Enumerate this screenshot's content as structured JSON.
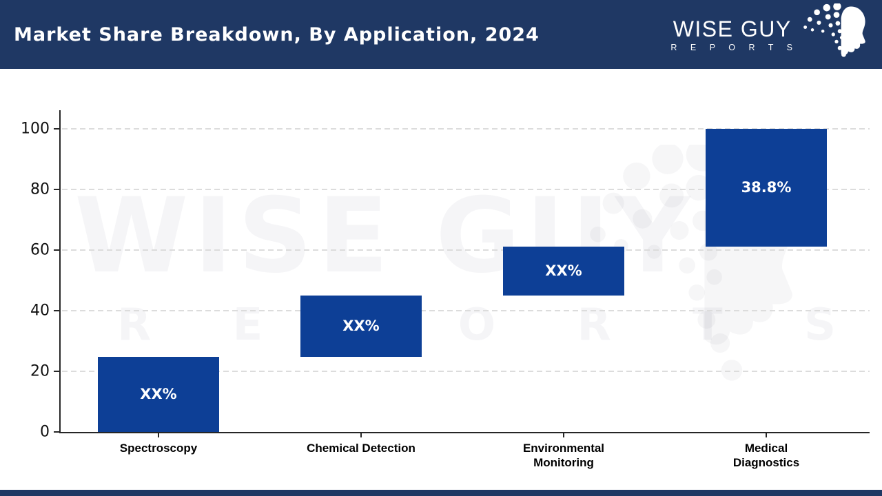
{
  "header": {
    "title": "Market Share Breakdown, By Application, 2024",
    "bg_color": "#1f3864",
    "logo": {
      "line1": "WISE GUY",
      "line2": "R E P O R T S",
      "icon": "dotted-face-profile"
    }
  },
  "watermark": {
    "line1": "WISE GUY",
    "line2": "R E P O R T S"
  },
  "footer": {
    "bg_color": "#1f3864"
  },
  "colors": {
    "bar": "#0d3f96",
    "header_navy": "#1f3864",
    "gridline": "#dcdcdc",
    "axis": "#262626"
  },
  "chart_data": {
    "type": "bar",
    "subtype": "floating-waterfall",
    "title": "Market Share Breakdown, By Application, 2024",
    "categories": [
      "Spectroscopy",
      "Chemical Detection",
      "Environmental Monitoring",
      "Medical Diagnostics"
    ],
    "segments": [
      {
        "category": "Spectroscopy",
        "label_lines": [
          "Spectroscopy"
        ],
        "start": 0,
        "end": 24.8,
        "value_label": "XX%"
      },
      {
        "category": "Chemical Detection",
        "label_lines": [
          "Chemical Detection"
        ],
        "start": 24.8,
        "end": 45.0,
        "value_label": "XX%"
      },
      {
        "category": "Environmental Monitoring",
        "label_lines": [
          "Environmental",
          "Monitoring"
        ],
        "start": 45.0,
        "end": 61.2,
        "value_label": "XX%"
      },
      {
        "category": "Medical Diagnostics",
        "label_lines": [
          "Medical",
          "Diagnostics"
        ],
        "start": 61.2,
        "end": 100,
        "value_label": "38.8%"
      }
    ],
    "yticks": [
      0,
      20,
      40,
      60,
      80,
      100
    ],
    "ylim": [
      0,
      106
    ],
    "xlabel": "",
    "ylabel": "",
    "grid": {
      "axis": "y",
      "style": "dashed",
      "color": "#dcdcdc"
    },
    "legend": "none",
    "bar_color": "#0d3f96",
    "value_label_color": "#ffffff"
  }
}
